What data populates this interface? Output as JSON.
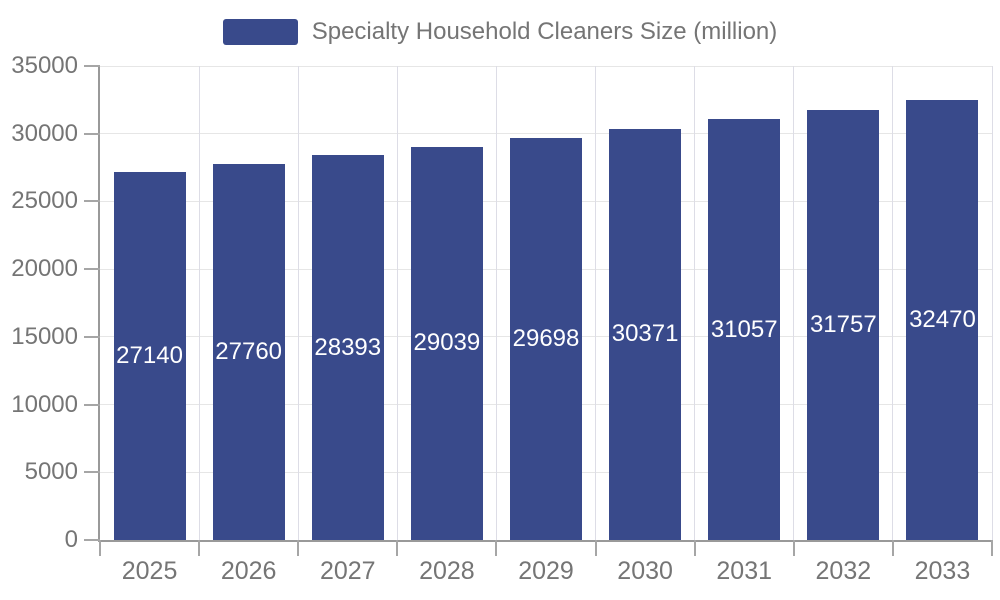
{
  "chart_data": {
    "type": "bar",
    "title": "Specialty Household Cleaners Size (million)",
    "categories": [
      "2025",
      "2026",
      "2027",
      "2028",
      "2029",
      "2030",
      "2031",
      "2032",
      "2033"
    ],
    "values": [
      27140,
      27760,
      28393,
      29039,
      29698,
      30371,
      31057,
      31757,
      32470
    ],
    "xlabel": "",
    "ylabel": "",
    "ylim": [
      0,
      35000
    ],
    "ytick_step": 5000,
    "yticks": [
      0,
      5000,
      10000,
      15000,
      20000,
      25000,
      30000,
      35000
    ],
    "grid": true,
    "legend_position": "top-center",
    "value_labels": "inside-middle"
  },
  "legend": {
    "label": "Specialty Household Cleaners Size (million)"
  },
  "colors": {
    "bar": "#394a8b",
    "axis_label": "#757575",
    "legend_label": "#757575",
    "value_label": "#ffffff",
    "grid_line_horizontal": "#e6e6e6",
    "grid_line_vertical": "#dddde6",
    "axis_line": "#999999",
    "tick_line": "#a6a6a6",
    "background": "#ffffff"
  }
}
